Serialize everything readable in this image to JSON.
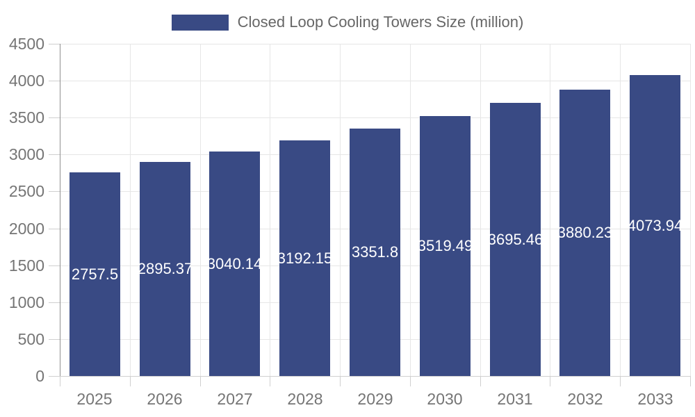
{
  "legend": {
    "label": "Closed Loop Cooling Towers Size (million)"
  },
  "colors": {
    "bar": "#394a84",
    "legend_text": "#666666",
    "tick_label": "#757575",
    "grid": "#e6e6e6",
    "y_axis_line": "#8f8f8f",
    "x_axis_line": "#cfcfcf",
    "tick_mark": "#cfcfcf",
    "bar_label_text": "#ffffff",
    "background": "#ffffff"
  },
  "chart_data": {
    "type": "bar",
    "title": "",
    "legend_entries": [
      "Closed Loop Cooling Towers Size (million)"
    ],
    "legend_position": "top-center",
    "categories": [
      "2025",
      "2026",
      "2027",
      "2028",
      "2029",
      "2030",
      "2031",
      "2032",
      "2033"
    ],
    "values": [
      2757.5,
      2895.37,
      3040.14,
      3192.15,
      3351.8,
      3519.49,
      3695.46,
      3880.23,
      4073.94
    ],
    "bar_value_labels": [
      "2757.5",
      "2895.37",
      "3040.14",
      "3192.15",
      "3351.8",
      "3519.49",
      "3695.46",
      "3880.23",
      "4073.94"
    ],
    "xlabel": "",
    "ylabel": "",
    "ylim": [
      0,
      4500
    ],
    "yticks": [
      0,
      500,
      1000,
      1500,
      2000,
      2500,
      3000,
      3500,
      4000,
      4500
    ],
    "grid": true,
    "bar_labels_inside": true
  }
}
